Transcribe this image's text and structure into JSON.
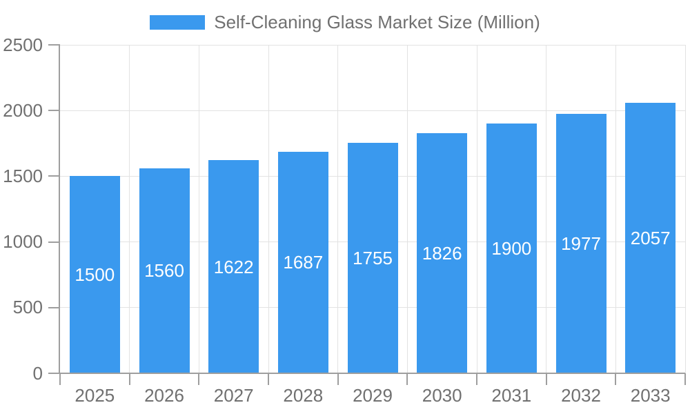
{
  "chart_data": {
    "type": "bar",
    "title": "Self-Cleaning Glass Market Size (Million)",
    "legend": {
      "label": "Self-Cleaning Glass Market Size (Million)",
      "position": "top"
    },
    "categories": [
      "2025",
      "2026",
      "2027",
      "2028",
      "2029",
      "2030",
      "2031",
      "2032",
      "2033"
    ],
    "values": [
      1500,
      1560,
      1622,
      1687,
      1755,
      1826,
      1900,
      1977,
      2057
    ],
    "xlabel": "",
    "ylabel": "",
    "ylim": [
      0,
      2500
    ],
    "yticks": [
      0,
      500,
      1000,
      1500,
      2000,
      2500
    ],
    "grid": true,
    "value_labels": "inside-center",
    "colors": {
      "bar": "#3A99EE",
      "value_label": "#FFFFFF",
      "axis_text": "#707070",
      "axis_line": "#9E9E9E",
      "gridline": "#E2E2E2",
      "background": "#FFFFFF"
    }
  }
}
